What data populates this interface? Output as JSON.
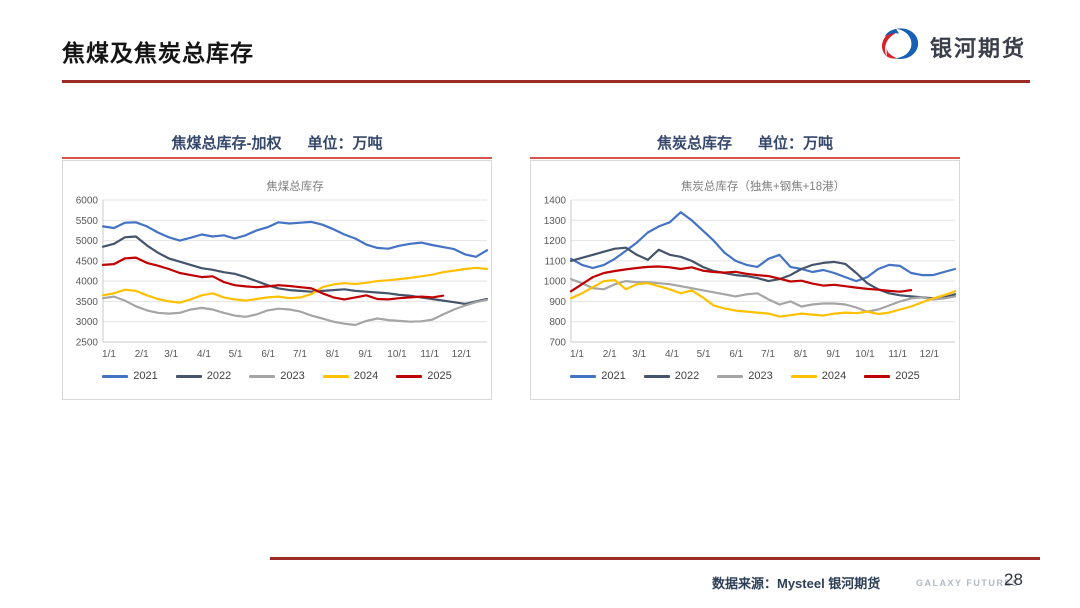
{
  "page": {
    "title": "焦煤及焦炭总库存",
    "logo_text": "银河期货",
    "footer": {
      "source": "数据来源：Mysteel 银河期货",
      "brand": "GALAXY FUTURES",
      "page_number": "28"
    },
    "accent_dark_red": "#9e2b25",
    "accent_red": "#d5544c"
  },
  "chart_data": [
    {
      "type": "line",
      "header_title": "焦煤总库存-加权",
      "header_unit": "单位：万吨",
      "inner_title": "焦煤总库存",
      "ylim": [
        2500,
        6000
      ],
      "y_step": 500,
      "grid": true,
      "legend_position": "bottom",
      "x_tick_labels": [
        "1/1",
        "2/1",
        "3/1",
        "4/1",
        "5/1",
        "6/1",
        "7/1",
        "8/1",
        "9/1",
        "10/1",
        "11/1",
        "12/1"
      ],
      "series": [
        {
          "name": "2021",
          "color": "#4472C4",
          "values": [
            5350,
            5310,
            5440,
            5450,
            5350,
            5200,
            5080,
            5000,
            5070,
            5150,
            5100,
            5130,
            5050,
            5130,
            5250,
            5330,
            5450,
            5420,
            5440,
            5460,
            5390,
            5280,
            5150,
            5050,
            4900,
            4820,
            4800,
            4870,
            4920,
            4950,
            4890,
            4840,
            4790,
            4660,
            4600,
            4760
          ]
        },
        {
          "name": "2022",
          "color": "#44546A",
          "values": [
            4850,
            4920,
            5080,
            5100,
            4880,
            4700,
            4560,
            4480,
            4400,
            4320,
            4280,
            4220,
            4180,
            4100,
            4000,
            3900,
            3820,
            3780,
            3760,
            3740,
            3760,
            3780,
            3800,
            3760,
            3740,
            3720,
            3700,
            3660,
            3640,
            3600,
            3560,
            3520,
            3480,
            3440,
            3500,
            3560
          ]
        },
        {
          "name": "2023",
          "color": "#A5A5A5",
          "values": [
            3580,
            3620,
            3520,
            3380,
            3280,
            3220,
            3200,
            3220,
            3300,
            3340,
            3300,
            3220,
            3150,
            3120,
            3180,
            3280,
            3320,
            3300,
            3250,
            3150,
            3080,
            3000,
            2950,
            2920,
            3020,
            3080,
            3040,
            3020,
            3000,
            3010,
            3050,
            3180,
            3300,
            3400,
            3480,
            3540
          ]
        },
        {
          "name": "2024",
          "color": "#FFC000",
          "values": [
            3650,
            3700,
            3790,
            3760,
            3650,
            3560,
            3500,
            3470,
            3550,
            3650,
            3700,
            3600,
            3550,
            3520,
            3560,
            3600,
            3620,
            3580,
            3600,
            3680,
            3850,
            3920,
            3950,
            3930,
            3960,
            4000,
            4020,
            4050,
            4080,
            4120,
            4160,
            4220,
            4260,
            4300,
            4330,
            4300
          ]
        },
        {
          "name": "2025",
          "color": "#C00000",
          "values": [
            4400,
            4420,
            4560,
            4580,
            4450,
            4380,
            4300,
            4200,
            4150,
            4100,
            4120,
            3980,
            3900,
            3870,
            3850,
            3870,
            3900,
            3880,
            3850,
            3820,
            3700,
            3600,
            3550,
            3600,
            3650,
            3560,
            3550,
            3580,
            3600,
            3620,
            3600,
            3640
          ]
        }
      ]
    },
    {
      "type": "line",
      "header_title": "焦炭总库存",
      "header_unit": "单位：万吨",
      "inner_title": "焦炭总库存（独焦+钢焦+18港）",
      "ylim": [
        700,
        1400
      ],
      "y_step": 100,
      "grid": true,
      "legend_position": "bottom",
      "x_tick_labels": [
        "1/1",
        "2/1",
        "3/1",
        "4/1",
        "5/1",
        "6/1",
        "7/1",
        "8/1",
        "9/1",
        "10/1",
        "11/1",
        "12/1"
      ],
      "series": [
        {
          "name": "2021",
          "color": "#4472C4",
          "values": [
            1110,
            1080,
            1065,
            1080,
            1110,
            1150,
            1190,
            1240,
            1270,
            1290,
            1340,
            1300,
            1250,
            1200,
            1140,
            1100,
            1080,
            1070,
            1110,
            1130,
            1070,
            1060,
            1045,
            1055,
            1040,
            1020,
            1000,
            1020,
            1060,
            1080,
            1075,
            1040,
            1030,
            1030,
            1045,
            1060
          ]
        },
        {
          "name": "2022",
          "color": "#44546A",
          "values": [
            1100,
            1115,
            1130,
            1145,
            1160,
            1165,
            1130,
            1105,
            1155,
            1130,
            1120,
            1100,
            1070,
            1050,
            1040,
            1030,
            1025,
            1015,
            1000,
            1010,
            1030,
            1060,
            1080,
            1090,
            1095,
            1085,
            1040,
            990,
            960,
            940,
            930,
            925,
            920,
            915,
            920,
            935
          ]
        },
        {
          "name": "2023",
          "color": "#A5A5A5",
          "values": [
            1010,
            990,
            965,
            960,
            985,
            1000,
            995,
            995,
            990,
            985,
            975,
            965,
            955,
            945,
            935,
            925,
            935,
            940,
            910,
            885,
            900,
            875,
            885,
            890,
            890,
            885,
            870,
            850,
            860,
            880,
            900,
            915,
            920,
            910,
            915,
            925
          ]
        },
        {
          "name": "2024",
          "color": "#FFC000",
          "values": [
            915,
            940,
            970,
            1000,
            1005,
            960,
            985,
            990,
            975,
            960,
            940,
            955,
            920,
            880,
            865,
            855,
            850,
            845,
            840,
            825,
            832,
            840,
            835,
            830,
            840,
            845,
            842,
            850,
            838,
            845,
            860,
            875,
            895,
            915,
            930,
            950
          ]
        },
        {
          "name": "2025",
          "color": "#C00000",
          "values": [
            950,
            985,
            1020,
            1040,
            1050,
            1058,
            1065,
            1070,
            1072,
            1068,
            1060,
            1068,
            1052,
            1045,
            1042,
            1046,
            1036,
            1030,
            1025,
            1012,
            998,
            1002,
            988,
            978,
            982,
            975,
            968,
            962,
            958,
            952,
            948,
            956
          ]
        }
      ]
    }
  ]
}
